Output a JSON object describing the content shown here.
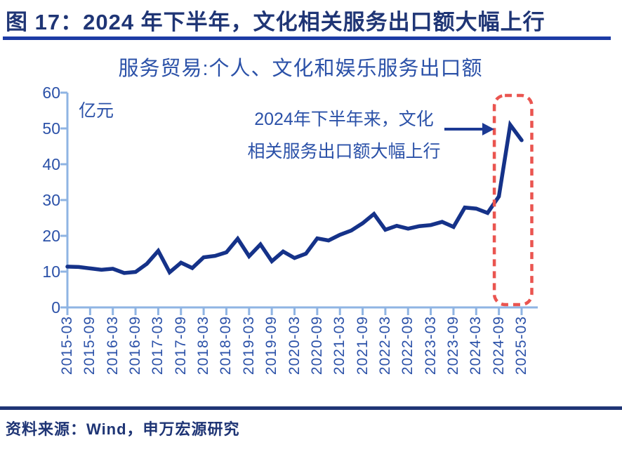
{
  "header": {
    "title": "图 17：2024 年下半年，文化相关服务出口额大幅上行"
  },
  "chart": {
    "title": "服务贸易:个人、文化和娱乐服务出口额",
    "unit_label": "亿元",
    "annotation": {
      "line1": "2024年下半年来，文化",
      "line2": "相关服务出口额大幅上行"
    }
  },
  "chart_data": {
    "type": "line",
    "title": "服务贸易:个人、文化和娱乐服务出口额",
    "ylabel": "亿元",
    "ylim": [
      0,
      60
    ],
    "yticks": [
      0,
      10,
      20,
      30,
      40,
      50,
      60
    ],
    "grid": false,
    "legend": "none",
    "x": [
      "2015-03",
      "2015-06",
      "2015-09",
      "2015-12",
      "2016-03",
      "2016-06",
      "2016-09",
      "2016-12",
      "2017-03",
      "2017-06",
      "2017-09",
      "2017-12",
      "2018-03",
      "2018-06",
      "2018-09",
      "2018-12",
      "2019-03",
      "2019-06",
      "2019-09",
      "2019-12",
      "2020-03",
      "2020-06",
      "2020-09",
      "2020-12",
      "2021-03",
      "2021-06",
      "2021-09",
      "2021-12",
      "2022-03",
      "2022-06",
      "2022-09",
      "2022-12",
      "2023-03",
      "2023-06",
      "2023-09",
      "2023-12",
      "2024-03",
      "2024-06",
      "2024-09",
      "2024-12",
      "2025-03"
    ],
    "values": [
      11.4,
      11.3,
      10.9,
      10.5,
      10.8,
      9.6,
      9.9,
      12.2,
      15.8,
      9.8,
      12.5,
      11.0,
      14.0,
      14.4,
      15.4,
      19.2,
      14.3,
      17.6,
      12.9,
      15.6,
      13.8,
      15.0,
      19.3,
      18.7,
      20.3,
      21.5,
      23.5,
      26.1,
      21.7,
      22.8,
      22.0,
      22.7,
      23.0,
      23.9,
      22.5,
      27.9,
      27.6,
      26.4,
      31.0,
      51.0,
      46.7
    ],
    "xtick_labels": [
      "2015-03",
      "2015-09",
      "2016-03",
      "2016-09",
      "2017-03",
      "2017-09",
      "2018-03",
      "2018-09",
      "2019-03",
      "2019-09",
      "2020-03",
      "2020-09",
      "2021-03",
      "2021-09",
      "2022-03",
      "2022-09",
      "2023-03",
      "2023-09",
      "2024-03",
      "2024-09",
      "2025-03"
    ],
    "highlight_box": {
      "from": "2024-09",
      "to": "2025-03"
    }
  },
  "footer": {
    "source": "资料来源：Wind，申万宏源研究"
  },
  "colors": {
    "navy_text": "#1F3575",
    "rule_blue": "#1C3BA5",
    "label_blue": "#2B51A8",
    "axis_blue": "#8FB4E3",
    "line_navy": "#153289",
    "arrow_blue": "#1C3A94",
    "highlight_red": "#EA5550",
    "background": "#FFFFFF"
  }
}
